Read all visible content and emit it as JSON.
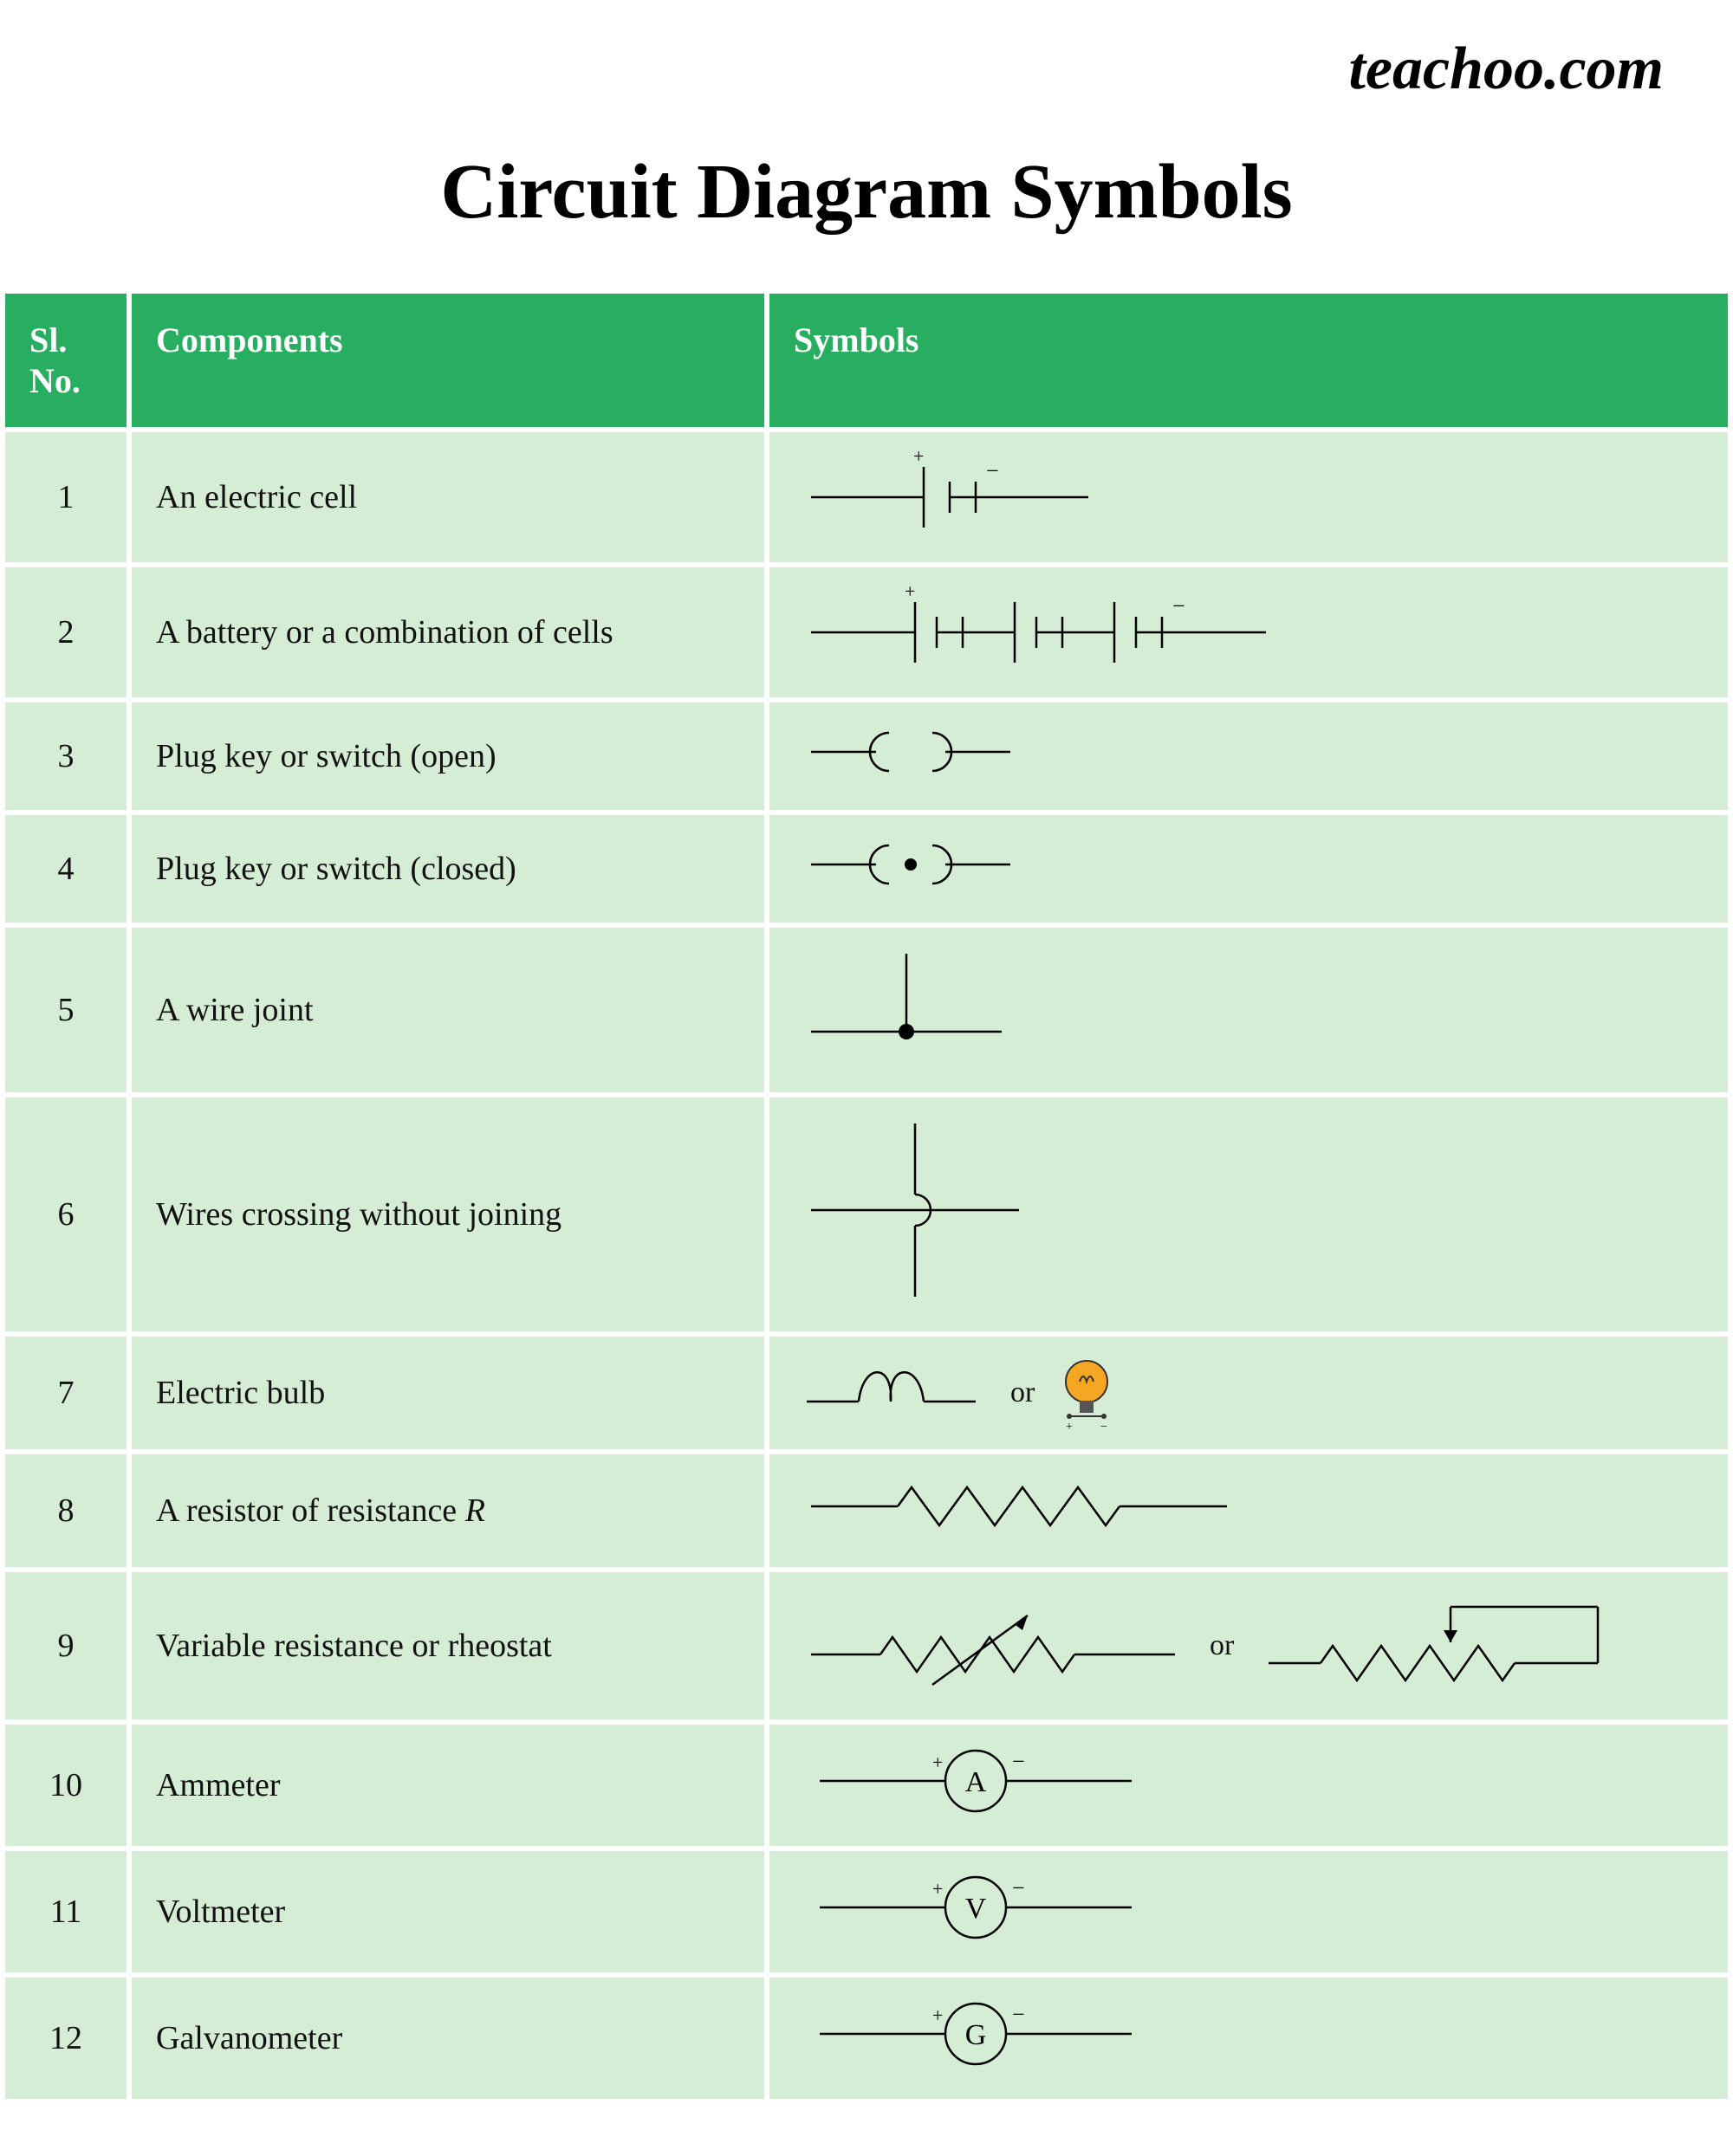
{
  "watermark": "teachoo.com",
  "title": "Circuit Diagram Symbols",
  "header_bg": "#27ae60",
  "header_fg": "#ffffff",
  "row_bg": "#d5ecd5",
  "stroke": "#000000",
  "stroke_width": 2.5,
  "columns": {
    "sl": "Sl. No.",
    "components": "Components",
    "symbols": "Symbols"
  },
  "or_text": "or",
  "rows": [
    {
      "n": "1",
      "name": "An electric cell",
      "symbol": "cell"
    },
    {
      "n": "2",
      "name": "A battery or a combination of cells",
      "symbol": "battery"
    },
    {
      "n": "3",
      "name": "Plug key or switch (open)",
      "symbol": "switch_open"
    },
    {
      "n": "4",
      "name": "Plug key or switch (closed)",
      "symbol": "switch_closed"
    },
    {
      "n": "5",
      "name": "A wire joint",
      "symbol": "wire_joint"
    },
    {
      "n": "6",
      "name": "Wires crossing without joining",
      "symbol": "wire_cross"
    },
    {
      "n": "7",
      "name": "Electric bulb",
      "symbol": "bulb"
    },
    {
      "n": "8",
      "name": "A resistor of resistance R",
      "symbol": "resistor",
      "italic_last": true
    },
    {
      "n": "9",
      "name": "Variable resistance or rheostat",
      "symbol": "rheostat"
    },
    {
      "n": "10",
      "name": "Ammeter",
      "symbol": "meter",
      "letter": "A"
    },
    {
      "n": "11",
      "name": "Voltmeter",
      "symbol": "meter",
      "letter": "V"
    },
    {
      "n": "12",
      "name": "Galvanometer",
      "symbol": "meter",
      "letter": "G"
    }
  ]
}
